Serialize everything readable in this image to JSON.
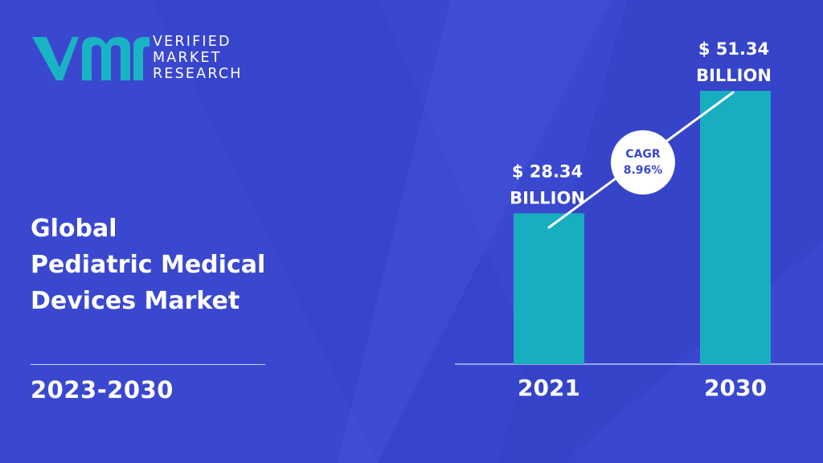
{
  "brand": {
    "line1": "VERIFIED",
    "line2": "MARKET",
    "line3": "RESEARCH",
    "colors": {
      "teal": "#1ab3c4",
      "background": "#3a48d0"
    }
  },
  "heading": {
    "line1": "Global",
    "line2": "Pediatric Medical",
    "line3": "Devices Market"
  },
  "period": "2023-2030",
  "chart_data": {
    "type": "bar",
    "categories": [
      "2021",
      "2030"
    ],
    "values": [
      28.34,
      51.34
    ],
    "value_labels": [
      [
        "$ 28.34",
        "BILLION"
      ],
      [
        "$ 51.34",
        "BILLION"
      ]
    ],
    "cagr_label": "CAGR",
    "cagr_value": "8.96%",
    "bar_color": "#17aec0",
    "ylim": [
      0,
      60
    ],
    "grid": false
  }
}
